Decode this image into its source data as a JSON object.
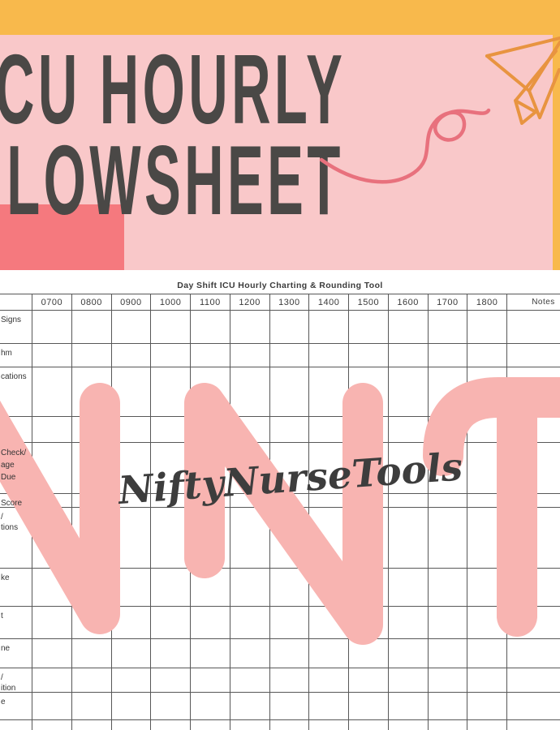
{
  "banner": {
    "title_line1": "CU HOURLY",
    "title_line2": "LOWSHEET",
    "colors": {
      "yellow": "#f8b94c",
      "pink": "#f9c8c9",
      "red_block": "#f5797e",
      "title_text": "#4a4846",
      "swirl": "#e8717d",
      "plane": "#e89440"
    }
  },
  "table": {
    "title": "Day Shift ICU Hourly Charting & Rounding Tool",
    "time_columns": [
      "0700",
      "0800",
      "0900",
      "1000",
      "1100",
      "1200",
      "1300",
      "1400",
      "1500",
      "1600",
      "1700",
      "1800"
    ],
    "notes_header": "Notes",
    "rows": [
      {
        "label_lines": [
          "Signs"
        ]
      },
      {
        "label_lines": [
          "hm"
        ]
      },
      {
        "label_lines": [
          "cations"
        ]
      },
      {
        "label_lines": []
      },
      {
        "label_lines": [
          "Check/",
          "age",
          "Due"
        ]
      },
      {
        "label_lines": [
          "Score"
        ]
      },
      {
        "label_lines": [
          "/",
          "tions"
        ]
      },
      {
        "label_lines": [
          "ke"
        ]
      },
      {
        "label_lines": [
          "t"
        ]
      },
      {
        "label_lines": [
          "ne"
        ]
      },
      {
        "label_lines": [
          "/",
          "ition"
        ]
      },
      {
        "label_lines": [
          "e"
        ]
      },
      {
        "label_lines": []
      }
    ]
  },
  "watermark": {
    "monogram": "NNT",
    "script_text": "NiftyNurseTools",
    "pink": "#f8b4b1",
    "text_color": "#3d3d3d"
  }
}
